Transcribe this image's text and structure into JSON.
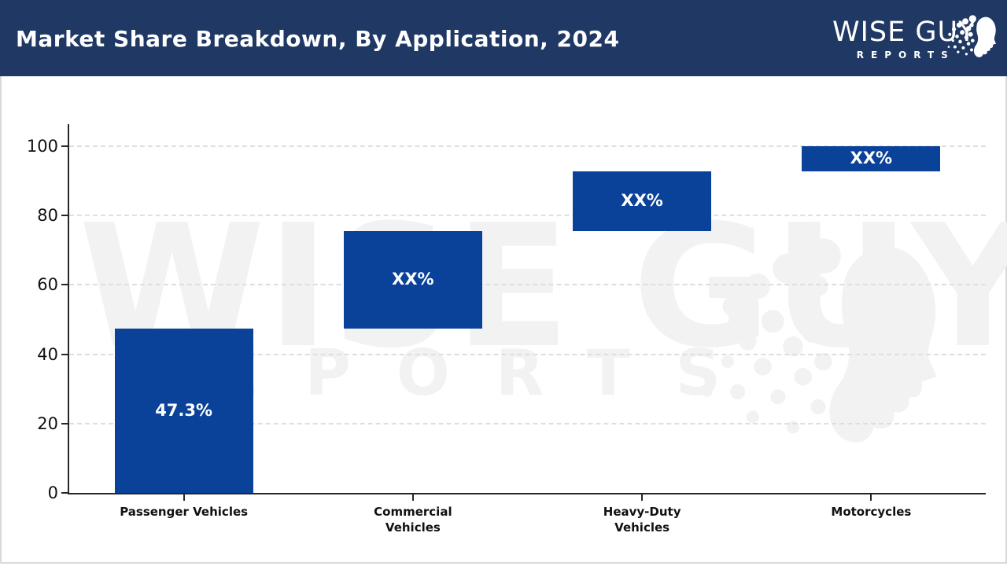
{
  "header": {
    "title": "Market Share Breakdown, By Application, 2024",
    "logo": {
      "line1": "WISE GUY",
      "line2": "REPORTS"
    }
  },
  "watermark": {
    "line1": "WISE GUY",
    "line2": "REPORTS"
  },
  "colors": {
    "header_bg": "#1f3864",
    "bar": "#0a4299",
    "bar_label": "#ffffff",
    "axis": "#262626",
    "grid": "#dedede",
    "watermark": "#f2f2f3",
    "panel_border": "#d9d9d9"
  },
  "chart_data": {
    "type": "bar",
    "subtype": "waterfall",
    "title": "Market Share Breakdown, By Application, 2024",
    "categories": [
      "Passenger Vehicles",
      "Commercial\nVehicles",
      "Heavy-Duty\nVehicles",
      "Motorcycles"
    ],
    "segments": [
      {
        "category": "Passenger Vehicles",
        "start": 0,
        "end": 47.3,
        "label": "47.3%"
      },
      {
        "category": "Commercial Vehicles",
        "start": 47.3,
        "end": 75.6,
        "label": "XX%"
      },
      {
        "category": "Heavy-Duty Vehicles",
        "start": 75.6,
        "end": 92.8,
        "label": "XX%"
      },
      {
        "category": "Motorcycles",
        "start": 92.8,
        "end": 100,
        "label": "XX%"
      }
    ],
    "ylabel": "",
    "xlabel": "",
    "ylim": [
      0,
      100
    ],
    "yticks": [
      0,
      20,
      40,
      60,
      80,
      100
    ],
    "grid": "horizontal-dashed",
    "legend": "none"
  }
}
